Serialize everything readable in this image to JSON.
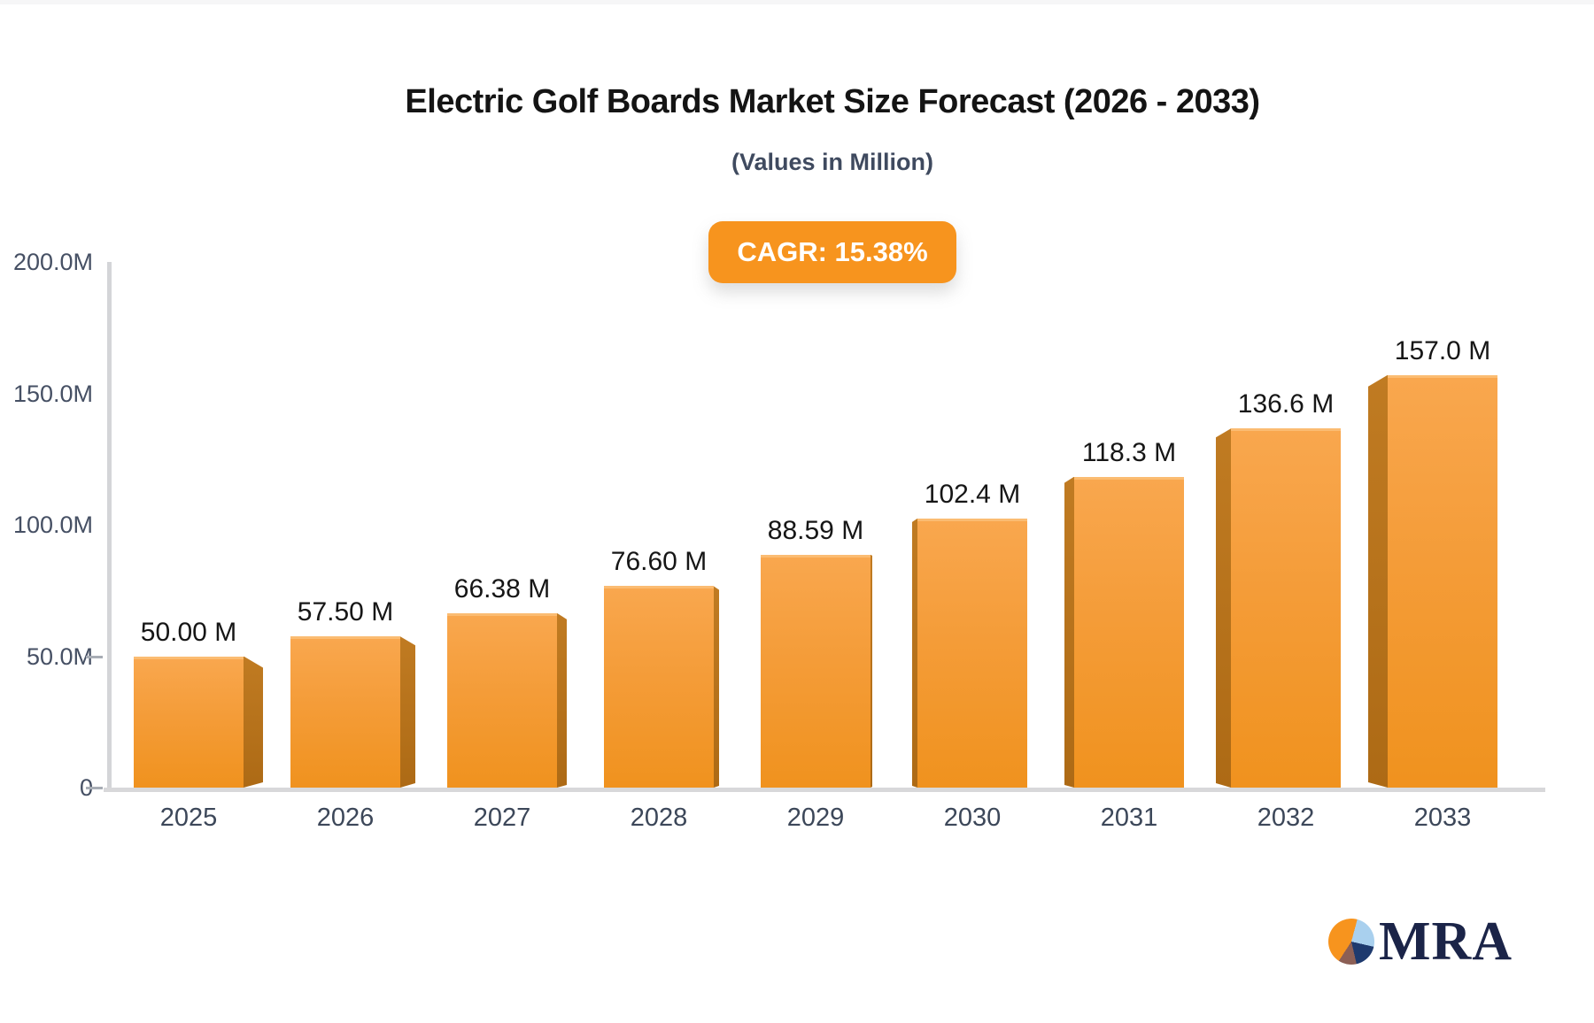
{
  "page": {
    "background": "#ffffff"
  },
  "header": {
    "title": "Electric Golf Boards Market Size Forecast (2026 - 2033)",
    "subtitle": "(Values in Million)",
    "cagr_badge": "CAGR: 15.38%"
  },
  "logo": {
    "icon": "pie-chart-icon",
    "text": "MRA"
  },
  "chart_data": {
    "type": "bar",
    "title": "Electric Golf Boards Market Size Forecast (2026 - 2033)",
    "subtitle": "(Values in Million)",
    "annotation": "CAGR: 15.38%",
    "unit": "M",
    "categories": [
      "2025",
      "2026",
      "2027",
      "2028",
      "2029",
      "2030",
      "2031",
      "2032",
      "2033"
    ],
    "values": [
      50.0,
      57.5,
      66.38,
      76.6,
      88.59,
      102.4,
      118.3,
      136.6,
      157.0
    ],
    "value_labels": [
      "50.00 M",
      "57.50 M",
      "66.38 M",
      "76.60 M",
      "88.59 M",
      "102.4 M",
      "118.3 M",
      "136.6 M",
      "157.0 M"
    ],
    "ylim": [
      0,
      200
    ],
    "y_ticks": [
      {
        "label": "200.0M",
        "value": 200,
        "tick": false
      },
      {
        "label": "150.0M",
        "value": 150,
        "tick": false
      },
      {
        "label": "100.0M",
        "value": 100,
        "tick": false
      },
      {
        "label": "50.0M",
        "value": 50,
        "tick": true
      },
      {
        "label": "0",
        "value": 0,
        "tick": true
      }
    ],
    "grid": false,
    "legend": "none",
    "bar_style": "3d-perspective-center",
    "colors": {
      "bar_top": "#f9a74e",
      "bar_bottom": "#f0921e",
      "bar_highlight": "#fbbc72",
      "bar_side_top": "#c07b22",
      "bar_side_bottom": "#ad6a15",
      "badge_bg": "#f7941e",
      "badge_text": "#ffffff",
      "axis": "#d6d7d9",
      "y_tick_label": "#465064",
      "x_tick_label": "#3c4759",
      "value_label": "#161616",
      "logo_navy": "#1b2448",
      "logo_orange": "#f7941e",
      "logo_lightblue": "#a9d0ee",
      "logo_maroon": "#8c5f55"
    }
  }
}
